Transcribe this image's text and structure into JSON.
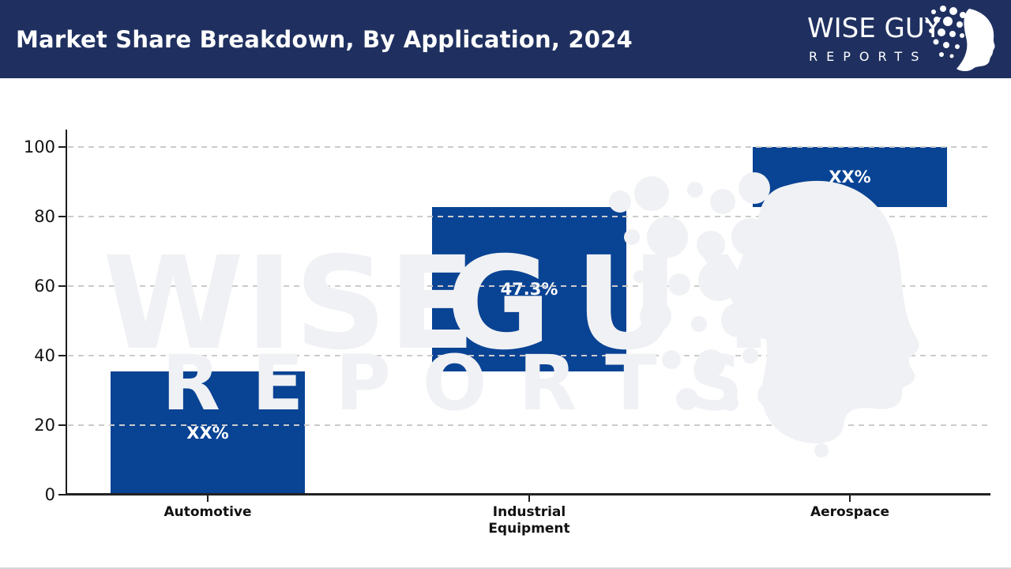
{
  "header": {
    "title": "Market Share Breakdown, By Application, 2024",
    "logo": {
      "name": "WISE GUY",
      "sub": "REPORTS"
    }
  },
  "watermark": {
    "word1": "WISE",
    "word2": "GUY",
    "word3": "REPORTS"
  },
  "chart_data": {
    "type": "bar",
    "variant": "floating-segment bars (stacked breakdown, each bar spans its cumulative share range)",
    "title": "Market Share Breakdown, By Application, 2024",
    "xlabel": "",
    "ylabel": "",
    "categories": [
      "Automotive",
      "Industrial\nEquipment",
      "Aerospace"
    ],
    "values": [
      35.4,
      47.3,
      17.3
    ],
    "bar_ranges": [
      [
        0,
        35.4
      ],
      [
        35.4,
        82.7
      ],
      [
        82.7,
        100
      ]
    ],
    "bar_labels": [
      "XX%",
      "47.3%",
      "XX%"
    ],
    "ylim": [
      0,
      100
    ],
    "yticks": [
      "0",
      "20",
      "40",
      "60",
      "80",
      "100"
    ],
    "grid": "horizontal dashed, drawn over bars",
    "legend_position": "none",
    "bar_color": "#094394",
    "bar_label_color": "#ffffff"
  }
}
